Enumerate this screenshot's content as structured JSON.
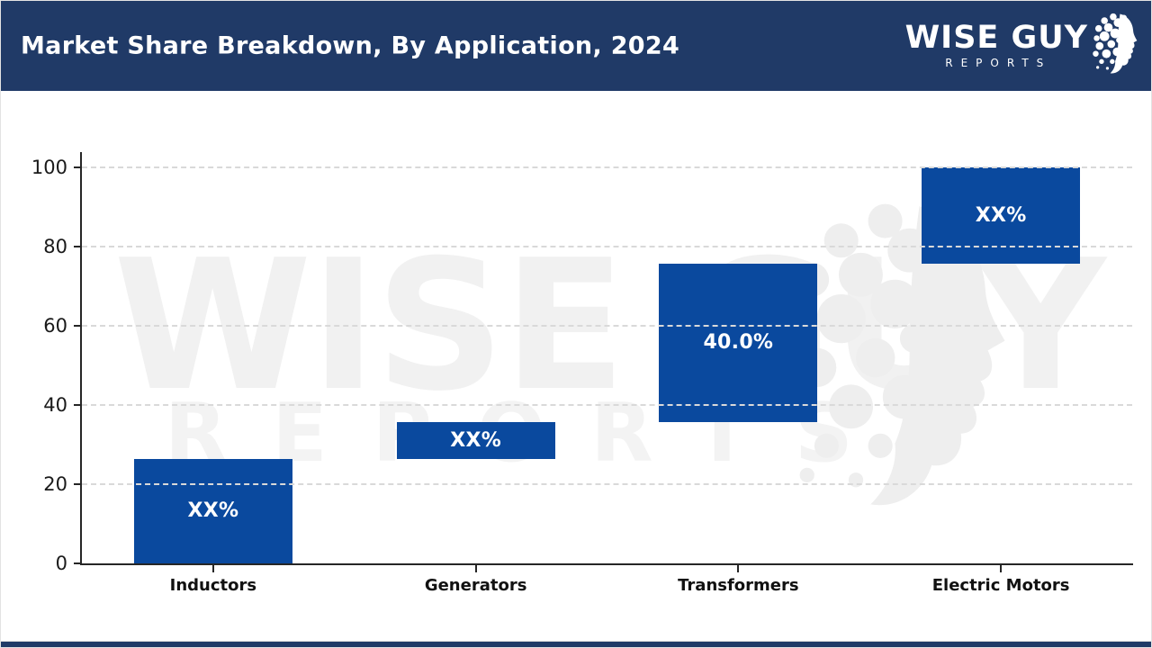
{
  "header": {
    "title": "Market Share Breakdown, By Application, 2024",
    "bg_color": "#203a67",
    "logo": {
      "line1": "WISE GUY",
      "line2": "REPORTS"
    }
  },
  "watermark": {
    "line1": "WISE GUY",
    "line2": "REPORTS",
    "color": "#f1f1f1"
  },
  "chart_data": {
    "type": "bar",
    "subtype": "waterfall",
    "title": "Market Share Breakdown, By Application, 2024",
    "categories": [
      "Inductors",
      "Generators",
      "Transformers",
      "Electric Motors"
    ],
    "segments": [
      {
        "category": "Inductors",
        "start": 0,
        "end": 26.4,
        "height": 26.4,
        "label": "XX%"
      },
      {
        "category": "Generators",
        "start": 26.4,
        "end": 35.7,
        "height": 9.3,
        "label": "XX%"
      },
      {
        "category": "Transformers",
        "start": 35.7,
        "end": 75.7,
        "height": 40.0,
        "label": "40.0%"
      },
      {
        "category": "Electric Motors",
        "start": 75.7,
        "end": 100,
        "height": 24.3,
        "label": "XX%"
      }
    ],
    "values": [
      26.4,
      9.3,
      40.0,
      24.3
    ],
    "yticks": [
      0,
      20,
      40,
      60,
      80,
      100
    ],
    "ylim": [
      0,
      104
    ],
    "xlabel": "",
    "ylabel": "",
    "grid": "horizontal-dashed-over-bars",
    "legend": "none",
    "bar_color": "#0a499e",
    "bar_label_color": "#ffffff",
    "axis_color": "#262626",
    "grid_color": "#d9d9d9"
  }
}
